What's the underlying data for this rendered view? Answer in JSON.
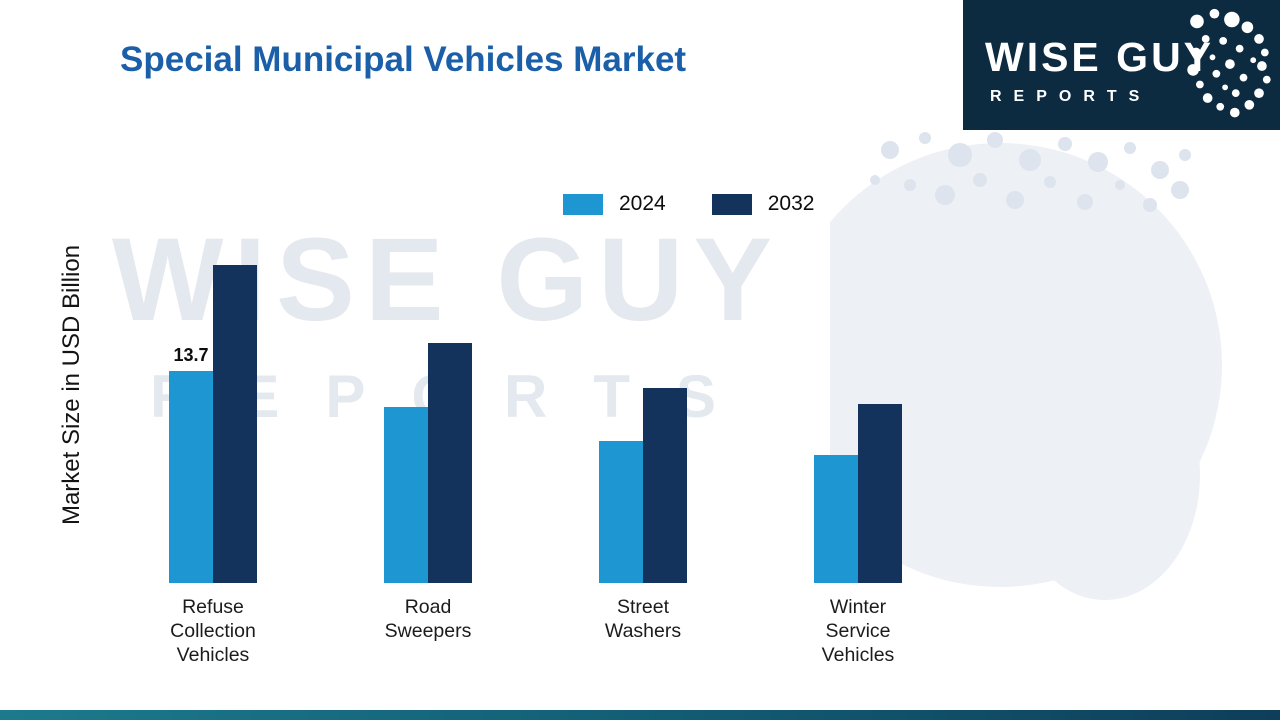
{
  "page": {
    "title": "Special Municipal Vehicles Market"
  },
  "logo": {
    "line1": "WISE GUY",
    "line2": "REPORTS"
  },
  "watermark": {
    "line1": "WISE GUY",
    "line2": "REPORTS"
  },
  "legend": [
    {
      "label": "2024",
      "color": "#1e96d2"
    },
    {
      "label": "2032",
      "color": "#14335c"
    }
  ],
  "chart_data": {
    "type": "bar",
    "title": "Special Municipal Vehicles Market",
    "xlabel": "",
    "ylabel": "Market Size in USD Billion",
    "ylim": [
      0,
      22
    ],
    "grid": false,
    "legend_position": "top",
    "categories": [
      "Refuse Collection Vehicles",
      "Road Sweepers",
      "Street Washers",
      "Winter Service Vehicles"
    ],
    "series": [
      {
        "name": "2024",
        "color": "#1e96d2",
        "values": [
          13.7,
          11.4,
          9.2,
          8.3
        ]
      },
      {
        "name": "2032",
        "color": "#14335c",
        "values": [
          20.6,
          15.5,
          12.6,
          11.6
        ]
      }
    ],
    "data_labels": [
      {
        "series": "2024",
        "category": "Refuse Collection Vehicles",
        "value": "13.7"
      }
    ]
  },
  "colors": {
    "title": "#1b5fa9",
    "bar_2024": "#1e96d2",
    "bar_2032": "#14335c",
    "logo_bg": "#0d2b40",
    "footer_left": "#1d7a8c",
    "footer_right": "#0e3e5a",
    "watermark": "#e4e8ef"
  }
}
